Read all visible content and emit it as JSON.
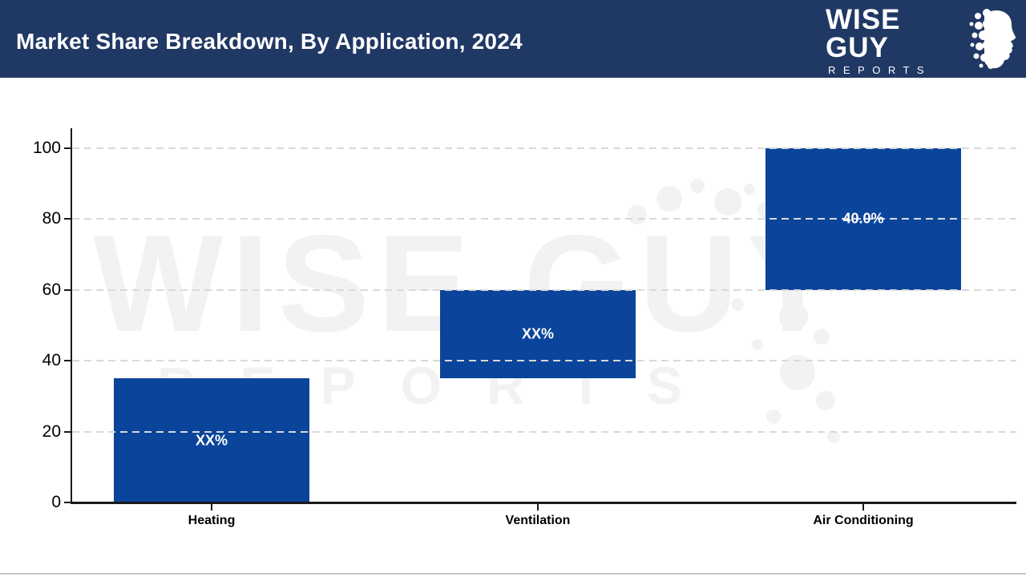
{
  "header": {
    "title": "Market Share Breakdown, By Application, 2024",
    "logo": {
      "line1": "WISE GUY",
      "line2": "REPORTS"
    }
  },
  "watermark": {
    "line1": "WISE GUY",
    "line2": "REPORTS"
  },
  "chart_data": {
    "type": "bar",
    "subtype": "waterfall",
    "title": "Market Share Breakdown, By Application, 2024",
    "categories": [
      "Heating",
      "Ventilation",
      "Air Conditioning"
    ],
    "bars": [
      {
        "category": "Heating",
        "start": 0,
        "end": 35,
        "label": "XX%"
      },
      {
        "category": "Ventilation",
        "start": 35,
        "end": 60,
        "label": "XX%"
      },
      {
        "category": "Air Conditioning",
        "start": 60,
        "end": 100,
        "label": "40.0%"
      }
    ],
    "yticks": [
      0,
      20,
      40,
      60,
      80,
      100
    ],
    "ylim": [
      0,
      105
    ],
    "xlabel": "",
    "ylabel": "",
    "grid": "dashed-horizontal",
    "legend": "none",
    "bar_color": "#0b459b",
    "axis_color": "#1a1a1a",
    "gridline_color": "#d9d9d9",
    "header_color": "#203864"
  }
}
